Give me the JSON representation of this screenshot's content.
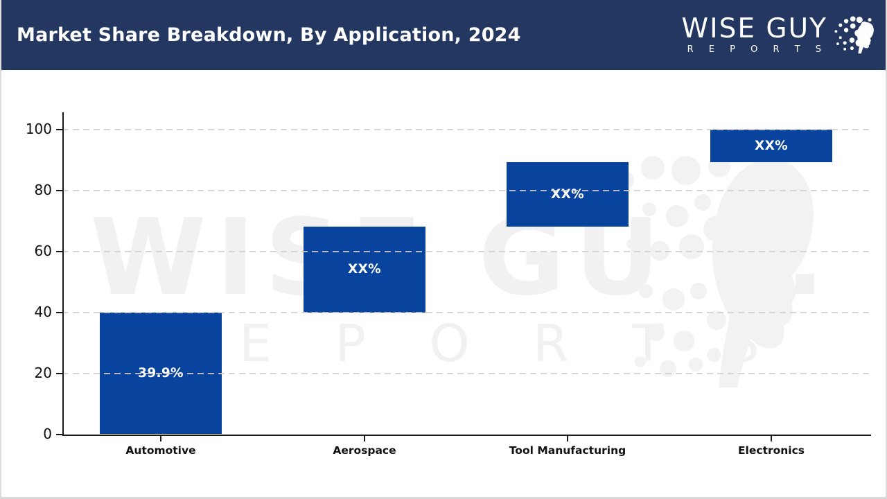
{
  "header": {
    "title": "Market Share Breakdown, By Application, 2024",
    "logo": {
      "name": "Wise Guy Reports",
      "line1": "WISE GUY",
      "line2": "R E P O R T S"
    }
  },
  "watermark": {
    "line1": "WISE GU Y.",
    "line2": "R E P O R T S"
  },
  "chart_data": {
    "type": "bar",
    "variant": "waterfall",
    "title": "Market Share Breakdown, By Application, 2024",
    "categories": [
      "Automotive",
      "Aerospace",
      "Tool Manufacturing",
      "Electronics"
    ],
    "segments": [
      {
        "category": "Automotive",
        "start": 0,
        "end": 39.9,
        "label": "39.9%"
      },
      {
        "category": "Aerospace",
        "start": 39.9,
        "end": 68.1,
        "label": "XX%"
      },
      {
        "category": "Tool Manufacturing",
        "start": 68.1,
        "end": 89.2,
        "label": "XX%"
      },
      {
        "category": "Electronics",
        "start": 89.2,
        "end": 100.0,
        "label": "XX%"
      }
    ],
    "xlabel": "",
    "ylabel": "",
    "ylim": [
      0,
      100
    ],
    "yticks": [
      0,
      20,
      40,
      60,
      80,
      100
    ],
    "grid": "horizontal-dashed",
    "legend": "none",
    "colors": {
      "bar": "#08439e",
      "bar_label": "#ffffff",
      "axis": "#1a1a1a",
      "gridline": "#cfcfcf",
      "header_bg": "#243760",
      "watermark": "#f1f1f2"
    }
  }
}
